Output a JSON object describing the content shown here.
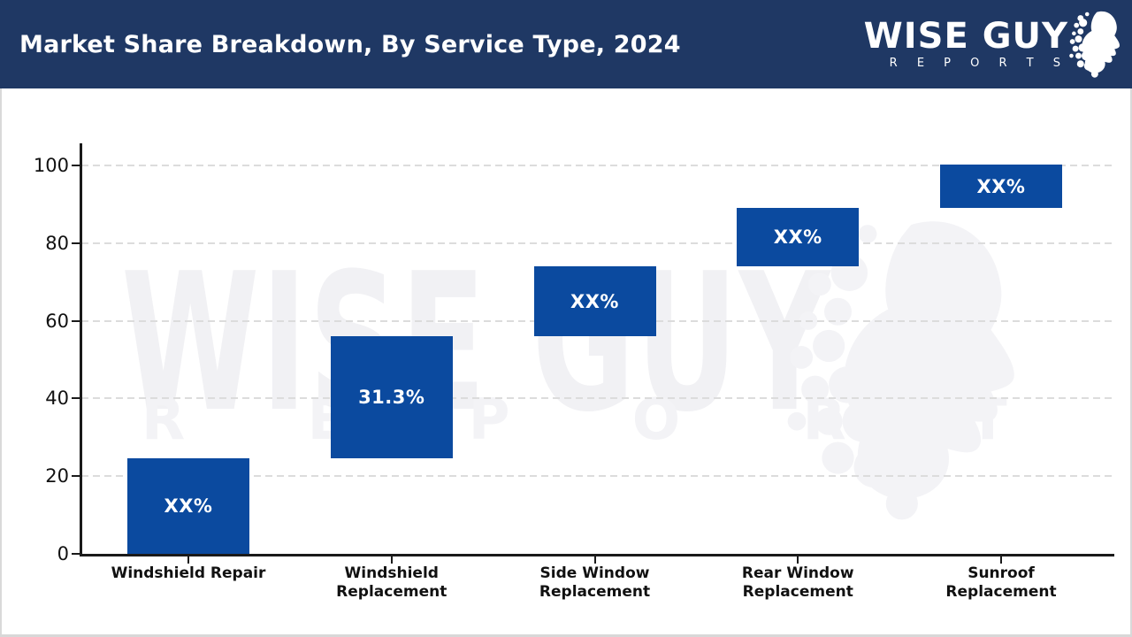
{
  "header": {
    "title": "Market Share Breakdown, By Service Type, 2024",
    "logo": {
      "line1": "WISE GUY",
      "line2": "R E P O R T S"
    }
  },
  "watermark": {
    "line1": "WISE GUY",
    "line2": "R E P O R T S"
  },
  "colors": {
    "header_bg": "#1f3864",
    "bar_fill": "#0b4a9f",
    "bar_label": "#ffffff",
    "axis": "#1a1a1a",
    "gridline": "#dcdcdc",
    "watermark": "#f1f1f4"
  },
  "chart_data": {
    "type": "bar",
    "subtype": "waterfall-floating-bars",
    "title": "Market Share Breakdown, By Service Type, 2024",
    "categories": [
      "Windshield Repair",
      "Windshield Replacement",
      "Side Window Replacement",
      "Rear Window Replacement",
      "Sunroof Replacement"
    ],
    "bars": [
      {
        "category": "Windshield Repair",
        "start": 0,
        "end": 24.7,
        "value": 24.7,
        "value_label": "XX%"
      },
      {
        "category": "Windshield Replacement",
        "start": 24.7,
        "end": 56.0,
        "value": 31.3,
        "value_label": "31.3%"
      },
      {
        "category": "Side Window Replacement",
        "start": 56.0,
        "end": 74.0,
        "value": 18.0,
        "value_label": "XX%"
      },
      {
        "category": "Rear Window Replacement",
        "start": 74.0,
        "end": 89.0,
        "value": 15.0,
        "value_label": "XX%"
      },
      {
        "category": "Sunroof Replacement",
        "start": 89.0,
        "end": 100.2,
        "value": 11.2,
        "value_label": "XX%"
      }
    ],
    "yticks": [
      0,
      20,
      40,
      60,
      80,
      100
    ],
    "ylim": [
      0,
      105
    ],
    "xlabel": "",
    "ylabel": "",
    "grid": "horizontal-dashed",
    "legend": "none"
  }
}
